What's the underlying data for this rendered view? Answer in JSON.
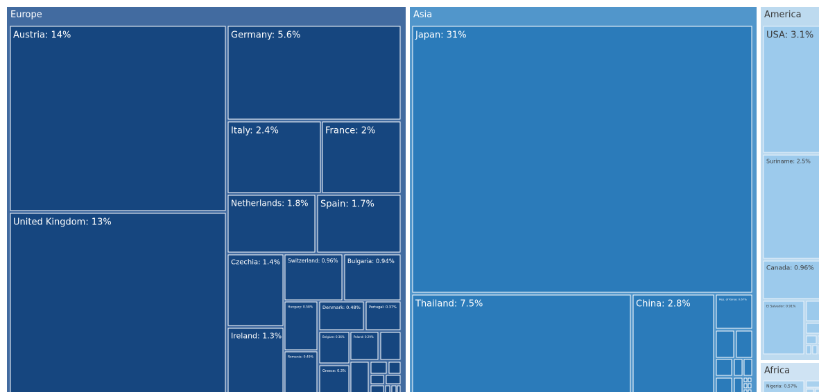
{
  "chart_data": {
    "type": "treemap",
    "groups": [
      {
        "name": "Europe",
        "color": "#426ba0",
        "tile_color": "#16467f",
        "children": [
          {
            "name": "Austria",
            "label": "Austria: 14%",
            "value": 14
          },
          {
            "name": "United Kingdom",
            "label": "United Kingdom: 13%",
            "value": 13
          },
          {
            "name": "Germany",
            "label": "Germany: 5.6%",
            "value": 5.6
          },
          {
            "name": "Italy",
            "label": "Italy: 2.4%",
            "value": 2.4
          },
          {
            "name": "France",
            "label": "France: 2%",
            "value": 2
          },
          {
            "name": "Netherlands",
            "label": "Netherlands: 1.8%",
            "value": 1.8
          },
          {
            "name": "Spain",
            "label": "Spain: 1.7%",
            "value": 1.7
          },
          {
            "name": "Czechia",
            "label": "Czechia: 1.4%",
            "value": 1.4
          },
          {
            "name": "Ireland",
            "label": "Ireland: 1.3%",
            "value": 1.3
          },
          {
            "name": "Switzerland",
            "label": "Switzerland: 0.96%",
            "value": 0.96
          },
          {
            "name": "Bulgaria",
            "label": "Bulgaria: 0.94%",
            "value": 0.94
          },
          {
            "name": "Hungary",
            "label": "Hungary: 0.58%",
            "value": 0.58
          },
          {
            "name": "Romania",
            "label": "Romania: 0.49%",
            "value": 0.49
          },
          {
            "name": "Denmark",
            "label": "Denmark: 0.48%",
            "value": 0.48
          },
          {
            "name": "Portugal",
            "label": "Portugal: 0.37%",
            "value": 0.37
          },
          {
            "name": "Belgium",
            "label": "Belgium: 0.36%",
            "value": 0.36
          },
          {
            "name": "Greece",
            "label": "Greece: 0.3%",
            "value": 0.3
          },
          {
            "name": "Poland",
            "label": "Poland: 0.29%",
            "value": 0.29
          }
        ]
      },
      {
        "name": "Asia",
        "color": "#5196cb",
        "tile_color": "#2b7bba",
        "children": [
          {
            "name": "Japan",
            "label": "Japan: 31%",
            "value": 31
          },
          {
            "name": "Thailand",
            "label": "Thailand: 7.5%",
            "value": 7.5
          },
          {
            "name": "China",
            "label": "China: 2.8%",
            "value": 2.8
          },
          {
            "name": "Rep. of Korea",
            "label": "Rep. of Korea: 0.67%",
            "value": 0.67
          }
        ]
      },
      {
        "name": "America",
        "color": "#bddaef",
        "tile_color": "#9ccaec",
        "children": [
          {
            "name": "USA",
            "label": "USA: 3.1%",
            "value": 3.1
          },
          {
            "name": "Suriname",
            "label": "Suriname: 2.5%",
            "value": 2.5
          },
          {
            "name": "Canada",
            "label": "Canada: 0.96%",
            "value": 0.96
          },
          {
            "name": "El Salvador",
            "label": "El Salvador: 0.91%",
            "value": 0.91
          }
        ]
      },
      {
        "name": "Africa",
        "color": "#cfe3f3",
        "tile_color": "#a9d1ee",
        "children": [
          {
            "name": "Nigeria",
            "label": "Nigeria: 0.57%",
            "value": 0.57
          }
        ]
      }
    ]
  }
}
